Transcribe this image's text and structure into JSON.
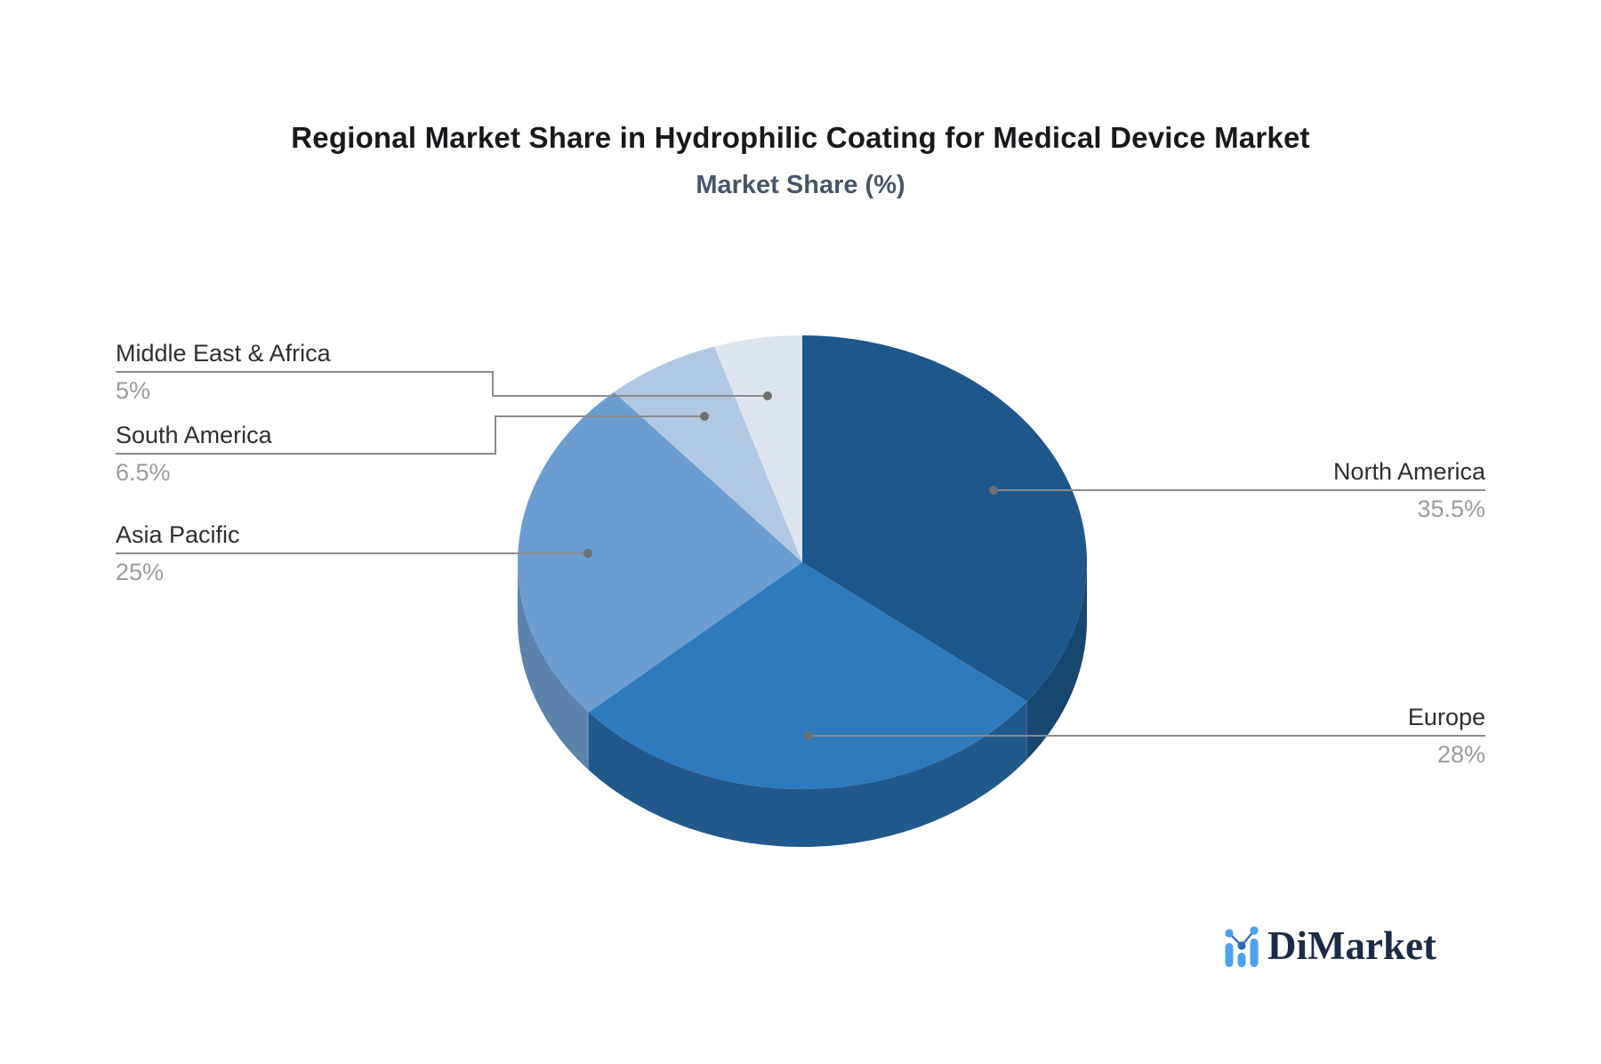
{
  "page": {
    "background": "#ffffff"
  },
  "chart_data": {
    "type": "pie",
    "style": "3d",
    "title": "Regional Market Share in Hydrophilic Coating for Medical Device Market",
    "subtitle": "Market Share (%)",
    "unit": "%",
    "start_angle_deg": 0,
    "direction": "clockwise",
    "legend_position": "none",
    "segments": [
      {
        "label": "North America",
        "value": 35.5,
        "display": "35.5%",
        "color": "#1d578c",
        "side_color": "#17466f"
      },
      {
        "label": "Europe",
        "value": 28,
        "display": "28%",
        "color": "#2e7abd",
        "side_color": "#22598c"
      },
      {
        "label": "Asia Pacific",
        "value": 25,
        "display": "25%",
        "color": "#6c9dd0",
        "side_color": "#5b83ac"
      },
      {
        "label": "South America",
        "value": 6.5,
        "display": "6.5%",
        "color": "#b0c8e2",
        "side_color": "#93a9c2"
      },
      {
        "label": "Middle East & Africa",
        "value": 5,
        "display": "5%",
        "color": "#dfe5ef",
        "side_color": "#c2ccd9"
      }
    ],
    "colors": {
      "label_text": "#2d2f33",
      "value_text": "#9b9b9b",
      "leader_line": "#8b8b8b",
      "leader_dot": "#6f6f6f",
      "title_text": "#17191c",
      "subtitle_text": "#48566a"
    }
  },
  "branding": {
    "name": "DiMarket",
    "icon": "bar-line-chart-icon",
    "icon_color": "#4aa1f2",
    "icon_accent_color": "#2d6cb5",
    "text_color": "#1c2b45"
  }
}
